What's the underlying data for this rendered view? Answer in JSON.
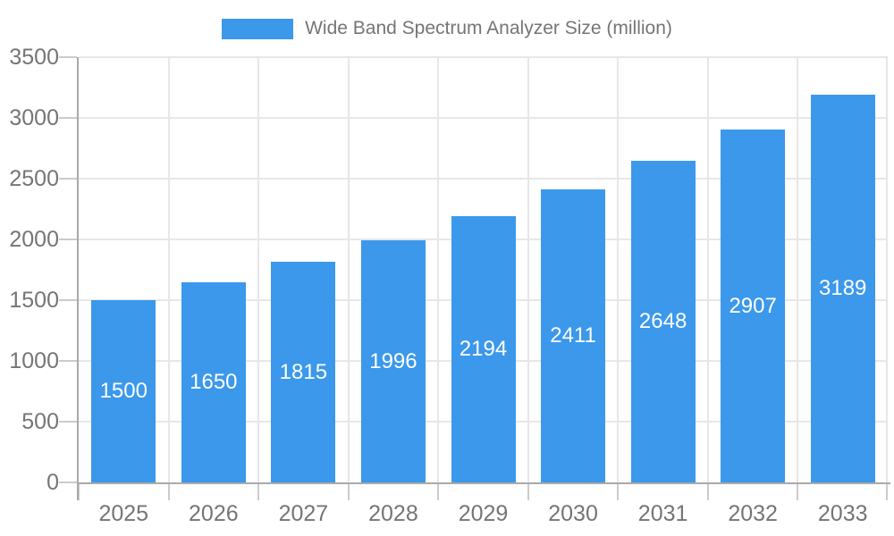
{
  "chart_data": {
    "type": "bar",
    "title": "",
    "legend_position": "top",
    "categories": [
      "2025",
      "2026",
      "2027",
      "2028",
      "2029",
      "2030",
      "2031",
      "2032",
      "2033"
    ],
    "series": [
      {
        "name": "Wide Band Spectrum Analyzer Size (million)",
        "values": [
          1500,
          1650,
          1815,
          1996,
          2194,
          2411,
          2648,
          2907,
          3189
        ]
      }
    ],
    "value_labels": [
      "1500",
      "1650",
      "1815",
      "1996",
      "2194",
      "2411",
      "2648",
      "2907",
      "3189"
    ],
    "xlabel": "",
    "ylabel": "",
    "ylim": [
      0,
      3500
    ],
    "yticks": [
      0,
      500,
      1000,
      1500,
      2000,
      2500,
      3000,
      3500
    ],
    "grid": "horizontal and vertical gridlines, ticks outside axes",
    "colors": {
      "bar": "#3B98EB",
      "value_label": "#FFFFFF",
      "axis_label": "#757575",
      "legend_text": "#757575",
      "gridline": "#E7E7E7",
      "axis_line": "#A9A9A9",
      "tick": "#CBCBCB",
      "background": "#FFFFFF"
    }
  }
}
